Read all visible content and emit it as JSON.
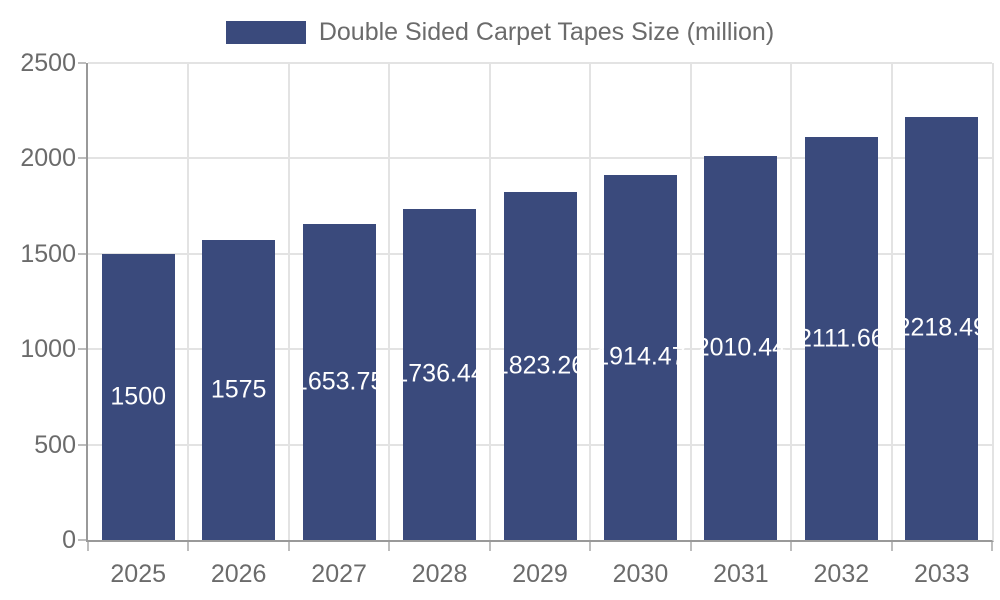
{
  "legend": {
    "label": "Double Sided Carpet Tapes Size (million)"
  },
  "chart_data": {
    "type": "bar",
    "title": "Double Sided Carpet Tapes Size (million)",
    "categories": [
      "2025",
      "2026",
      "2027",
      "2028",
      "2029",
      "2030",
      "2031",
      "2032",
      "2033"
    ],
    "series": [
      {
        "name": "Double Sided Carpet Tapes Size (million)",
        "values": [
          1500,
          1575,
          1653.75,
          1736.44,
          1823.26,
          1914.47,
          2010.44,
          2111.66,
          2218.49
        ]
      }
    ],
    "bar_labels": [
      "1500",
      "1575",
      "1653.75",
      "1736.44",
      "1823.26",
      "1914.47",
      "2010.44",
      "2111.66",
      "2218.49"
    ],
    "xlabel": "",
    "ylabel": "",
    "ylim": [
      0,
      2500
    ],
    "y_ticks": [
      0,
      500,
      1000,
      1500,
      2000,
      2500
    ],
    "y_tick_labels": [
      "0",
      "500",
      "1000",
      "1500",
      "2000",
      "2500"
    ],
    "grid": true,
    "legend_position": "top-center",
    "colors": {
      "bar": "#3A4A7C",
      "grid": "#e3e3e3",
      "axis": "#999999",
      "tick": "#bdbdbd",
      "axis_label": "#6b6b6b",
      "bar_label": "#ffffff",
      "background": "#ffffff"
    }
  }
}
